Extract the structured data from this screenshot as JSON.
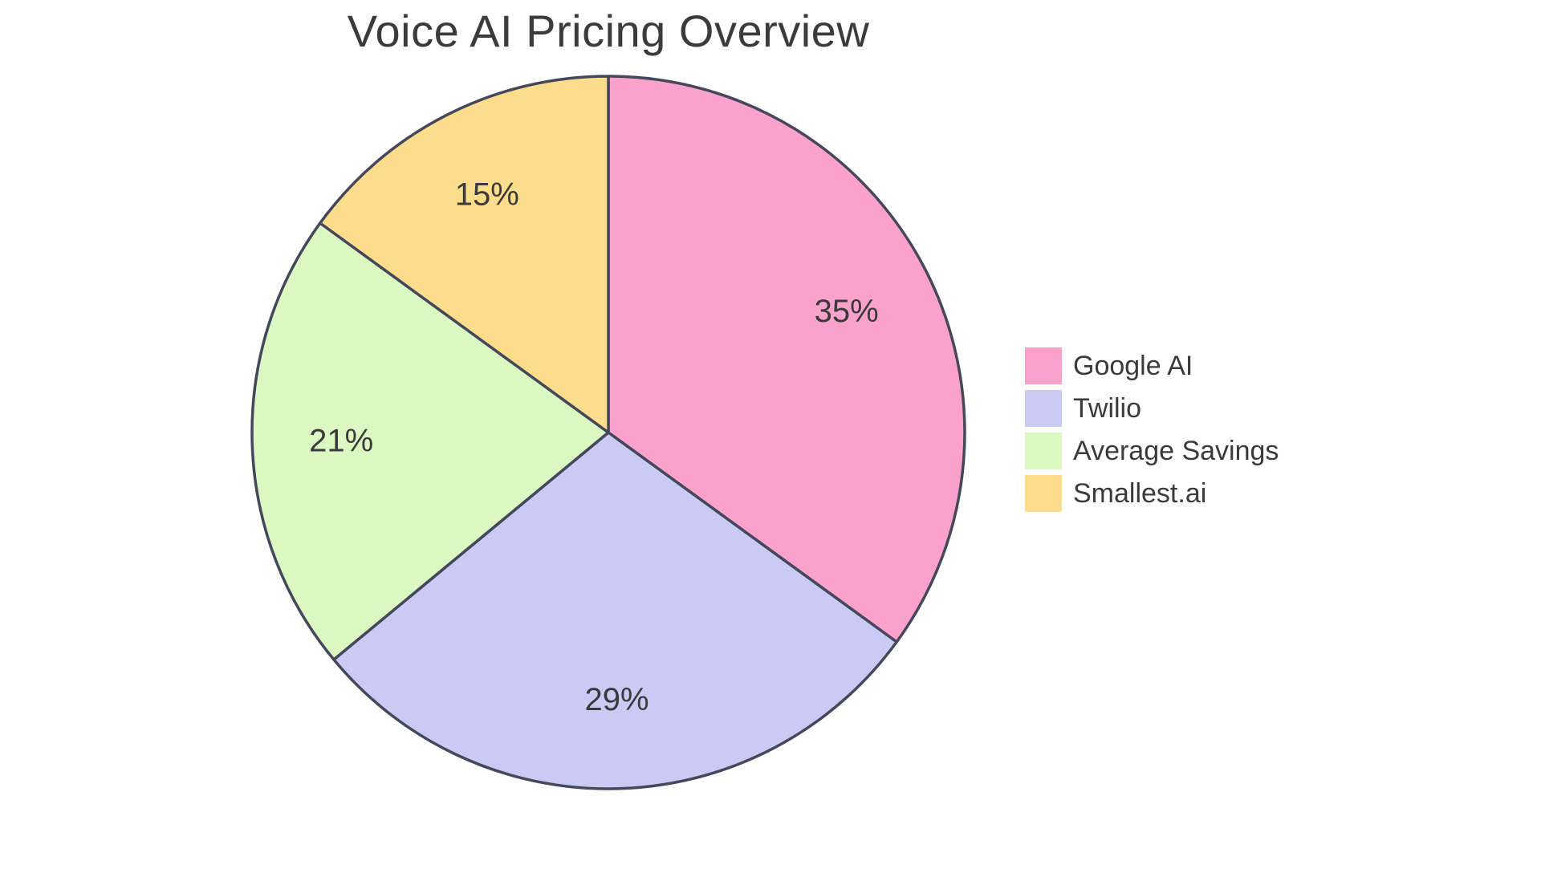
{
  "title": "Voice AI Pricing Overview",
  "colors": {
    "background": "#ffffff",
    "slice_border": "#45475a",
    "title_text": "#3b3b3b",
    "label_text": "#3a3a3a",
    "legend_text": "#3a3a3a"
  },
  "chart_data": {
    "type": "pie",
    "title": "Voice AI Pricing Overview",
    "categories": [
      "Google AI",
      "Twilio",
      "Average Savings",
      "Smallest.ai"
    ],
    "values": [
      35,
      29,
      21,
      15
    ],
    "percent_labels": [
      "35%",
      "29%",
      "21%",
      "15%"
    ],
    "slice_colors": [
      "#fba2cc",
      "#cacbf5",
      "#dcf8c2",
      "#fcdd8c"
    ],
    "start_angle_deg": 90,
    "direction": "clockwise",
    "legend_position": "right",
    "grid": false
  }
}
